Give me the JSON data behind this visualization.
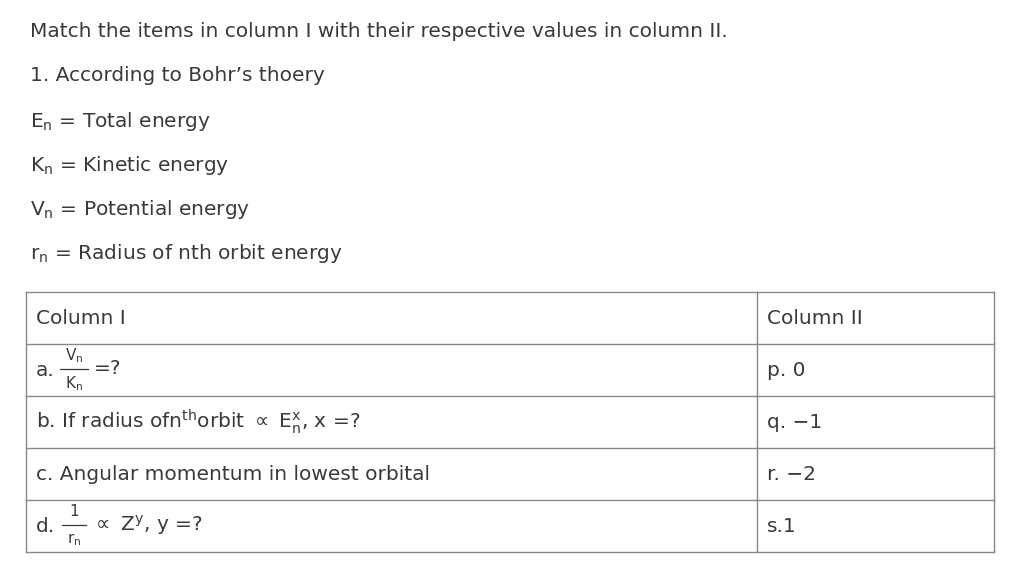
{
  "background_color": "#ffffff",
  "title_text": "Match the items in column I with their respective values in column II.",
  "subtitle": "1. According to Bohr’s thoery",
  "font_color": "#3a3a3a",
  "border_color": "#888888",
  "text_fontsize": 14.5,
  "header_fontsize": 14.5,
  "col2_texts": [
    "p. 0",
    "q. −1",
    "r. −2",
    "s.1"
  ],
  "col1_header": "Column I",
  "col2_header": "Column II"
}
